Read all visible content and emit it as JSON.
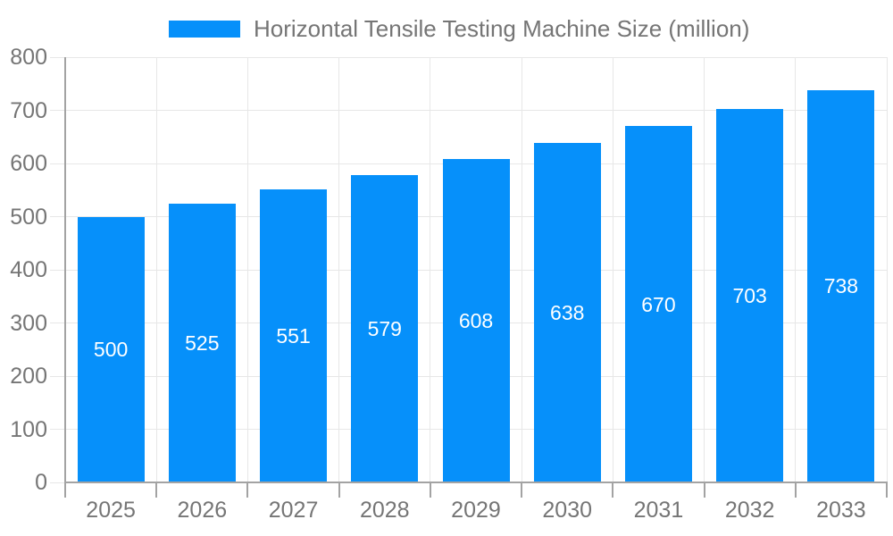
{
  "chart_data": {
    "type": "bar",
    "title": "Horizontal Tensile Testing Machine Size (million)",
    "categories": [
      "2025",
      "2026",
      "2027",
      "2028",
      "2029",
      "2030",
      "2031",
      "2032",
      "2033"
    ],
    "values": [
      500,
      525,
      551,
      579,
      608,
      638,
      670,
      703,
      738
    ],
    "xlabel": "",
    "ylabel": "",
    "ylim": [
      0,
      800
    ],
    "yticks": [
      0,
      100,
      200,
      300,
      400,
      500,
      600,
      700,
      800
    ],
    "grid": true,
    "legend_position": "top-center",
    "colors": {
      "bar": "#0690fa",
      "bar_value_text": "#ffffff",
      "axis_text": "#757575",
      "legend_text": "#757575",
      "grid_line": "#e7e7e7",
      "axis_line": "#a3a3a3",
      "background": "#ffffff"
    }
  }
}
